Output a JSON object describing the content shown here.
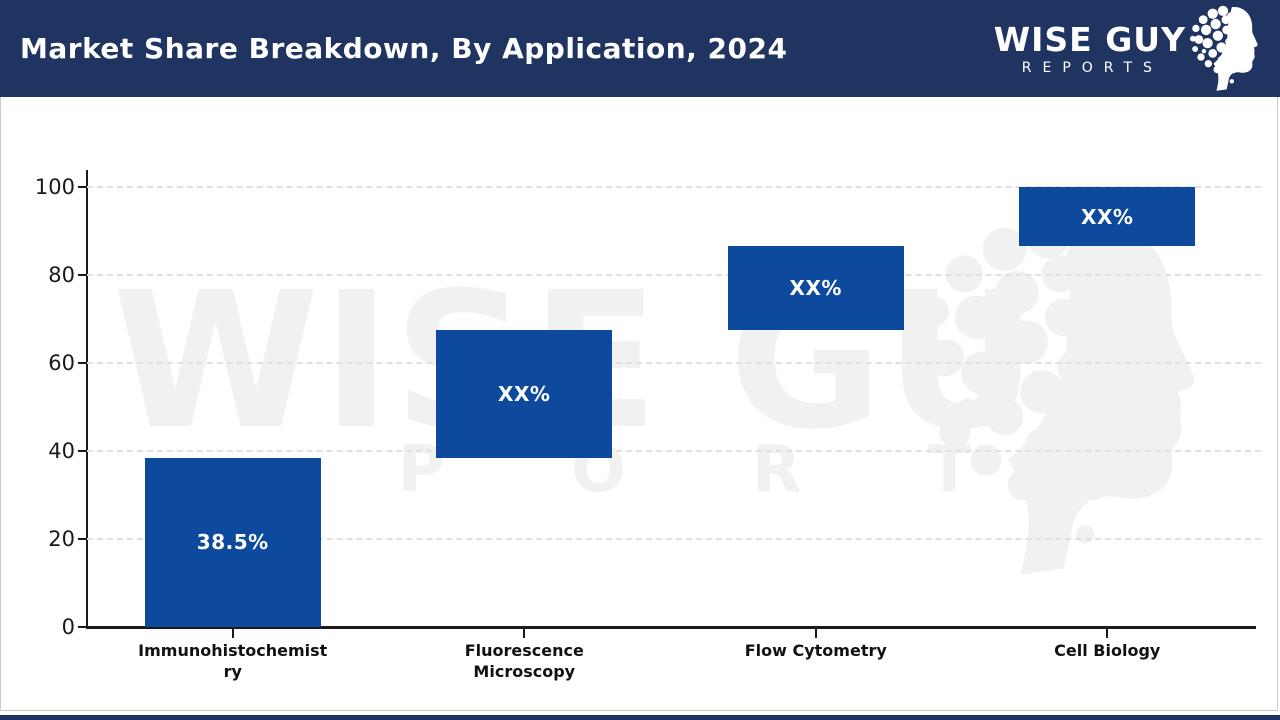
{
  "header": {
    "title": "Market Share Breakdown, By Application, 2024",
    "brand_name": "WISE GUY",
    "brand_sub": "REPORTS"
  },
  "watermark": {
    "line1": "WISE GU",
    "line2": "P O R T S"
  },
  "colors": {
    "header_bg": "#1f3461",
    "bar": "#0d4a9e",
    "axis": "#1a1a1a",
    "grid": "#e0e0e0",
    "watermark": "#f1f1f1",
    "value_label": "#ffffff"
  },
  "chart_data": {
    "type": "bar",
    "subtype": "waterfall-floating-bars",
    "title": "Market Share Breakdown, By Application, 2024",
    "categories": [
      "Immunohistochemistry",
      "Fluorescence Microscopy",
      "Flow Cytometry",
      "Cell Biology"
    ],
    "xtick_lines": [
      [
        "Immunohistochemist",
        "ry"
      ],
      [
        "Fluorescence",
        "Microscopy"
      ],
      [
        "Flow Cytometry"
      ],
      [
        "Cell Biology"
      ]
    ],
    "segments": [
      {
        "category": "Immunohistochemistry",
        "start": 0,
        "end": 38.5,
        "label": "38.5%"
      },
      {
        "category": "Fluorescence Microscopy",
        "start": 38.5,
        "end": 67.5,
        "label": "XX%"
      },
      {
        "category": "Flow Cytometry",
        "start": 67.5,
        "end": 86.5,
        "label": "XX%"
      },
      {
        "category": "Cell Biology",
        "start": 86.5,
        "end": 100,
        "label": "XX%"
      }
    ],
    "ylim": [
      0,
      100
    ],
    "yticks": [
      0,
      20,
      40,
      60,
      80,
      100
    ],
    "xlabel": "",
    "ylabel": "",
    "grid": "horizontal-dashed",
    "legend": "none"
  }
}
